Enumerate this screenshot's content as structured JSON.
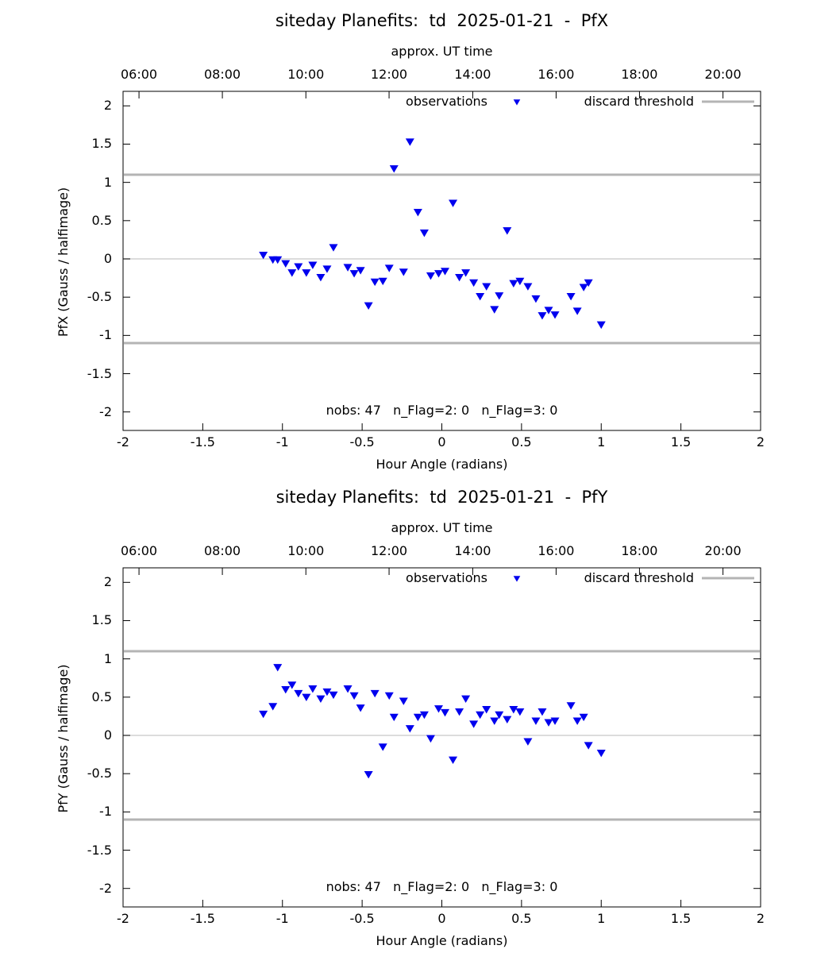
{
  "colors": {
    "marker_blue": "#0000ee",
    "threshold_gray": "#b4b4b4",
    "zero_line_gray": "#c8c8c8",
    "axis_black": "#000000"
  },
  "chart_data": [
    {
      "type": "scatter",
      "title": "siteday Planefits:  td  2025-01-21  -  PfX",
      "x2label": "approx. UT time",
      "x2ticks": [
        "06:00",
        "08:00",
        "10:00",
        "12:00",
        "14:00",
        "16:00",
        "18:00",
        "20:00"
      ],
      "x2tick_positions_rad": [
        -1.9,
        -1.377,
        -0.853,
        -0.331,
        0.194,
        0.717,
        1.24,
        1.764
      ],
      "xlabel": "Hour Angle (radians)",
      "xticks": [
        "-2",
        "-1.5",
        "-1",
        "-0.5",
        "0",
        "0.5",
        "1",
        "1.5",
        "2"
      ],
      "xlim": [
        -2,
        2
      ],
      "ylabel": "PfX (Gauss / halfimage)",
      "yticks": [
        "2",
        "1.5",
        "1",
        "0.5",
        "0",
        "-0.5",
        "-1",
        "-1.5",
        "-2"
      ],
      "ylim": [
        -2.2,
        2.2
      ],
      "grid": "zero-line only",
      "legend_position": "top-right inside",
      "legend": [
        {
          "label": "observations",
          "marker": "triangle-down",
          "color": "#0000ee"
        },
        {
          "label": "discard threshold",
          "marker": "line",
          "color": "#b4b4b4"
        }
      ],
      "discard_threshold": [
        1.1,
        -1.1
      ],
      "annotation": "nobs: 47   n_Flag=2: 0   n_Flag=3: 0",
      "nobs": 47,
      "n_flag2": 0,
      "n_flag3": 0,
      "points": [
        [
          -1.12,
          0.05
        ],
        [
          -1.06,
          -0.01
        ],
        [
          -1.03,
          -0.01
        ],
        [
          -0.98,
          -0.06
        ],
        [
          -0.94,
          -0.18
        ],
        [
          -0.9,
          -0.1
        ],
        [
          -0.85,
          -0.18
        ],
        [
          -0.81,
          -0.08
        ],
        [
          -0.76,
          -0.24
        ],
        [
          -0.72,
          -0.13
        ],
        [
          -0.68,
          0.15
        ],
        [
          -0.59,
          -0.11
        ],
        [
          -0.55,
          -0.19
        ],
        [
          -0.51,
          -0.15
        ],
        [
          -0.46,
          -0.61
        ],
        [
          -0.42,
          -0.3
        ],
        [
          -0.37,
          -0.29
        ],
        [
          -0.33,
          -0.12
        ],
        [
          -0.3,
          1.18
        ],
        [
          -0.24,
          -0.17
        ],
        [
          -0.2,
          1.53
        ],
        [
          -0.15,
          0.61
        ],
        [
          -0.11,
          0.34
        ],
        [
          -0.07,
          -0.22
        ],
        [
          -0.02,
          -0.19
        ],
        [
          0.02,
          -0.16
        ],
        [
          0.07,
          0.73
        ],
        [
          0.11,
          -0.24
        ],
        [
          0.15,
          -0.18
        ],
        [
          0.2,
          -0.31
        ],
        [
          0.24,
          -0.49
        ],
        [
          0.28,
          -0.36
        ],
        [
          0.33,
          -0.66
        ],
        [
          0.36,
          -0.48
        ],
        [
          0.41,
          0.37
        ],
        [
          0.45,
          -0.32
        ],
        [
          0.49,
          -0.29
        ],
        [
          0.54,
          -0.36
        ],
        [
          0.59,
          -0.52
        ],
        [
          0.63,
          -0.74
        ],
        [
          0.67,
          -0.67
        ],
        [
          0.71,
          -0.73
        ],
        [
          0.81,
          -0.49
        ],
        [
          0.85,
          -0.68
        ],
        [
          0.89,
          -0.37
        ],
        [
          0.92,
          -0.31
        ],
        [
          1.0,
          -0.86
        ]
      ]
    },
    {
      "type": "scatter",
      "title": "siteday Planefits:  td  2025-01-21  -  PfY",
      "x2label": "approx. UT time",
      "x2ticks": [
        "06:00",
        "08:00",
        "10:00",
        "12:00",
        "14:00",
        "16:00",
        "18:00",
        "20:00"
      ],
      "x2tick_positions_rad": [
        -1.9,
        -1.377,
        -0.853,
        -0.331,
        0.194,
        0.717,
        1.24,
        1.764
      ],
      "xlabel": "Hour Angle (radians)",
      "xticks": [
        "-2",
        "-1.5",
        "-1",
        "-0.5",
        "0",
        "0.5",
        "1",
        "1.5",
        "2"
      ],
      "xlim": [
        -2,
        2
      ],
      "ylabel": "PfY (Gauss / halfimage)",
      "yticks": [
        "2",
        "1.5",
        "1",
        "0.5",
        "0",
        "-0.5",
        "-1",
        "-1.5",
        "-2"
      ],
      "ylim": [
        -2.2,
        2.2
      ],
      "grid": "zero-line only",
      "legend_position": "top-right inside",
      "legend": [
        {
          "label": "observations",
          "marker": "triangle-down",
          "color": "#0000ee"
        },
        {
          "label": "discard threshold",
          "marker": "line",
          "color": "#b4b4b4"
        }
      ],
      "discard_threshold": [
        1.1,
        -1.1
      ],
      "annotation": "nobs: 47   n_Flag=2: 0   n_Flag=3: 0",
      "nobs": 47,
      "n_flag2": 0,
      "n_flag3": 0,
      "points": [
        [
          -1.12,
          0.28
        ],
        [
          -1.06,
          0.38
        ],
        [
          -1.03,
          0.89
        ],
        [
          -0.98,
          0.6
        ],
        [
          -0.94,
          0.66
        ],
        [
          -0.9,
          0.55
        ],
        [
          -0.85,
          0.5
        ],
        [
          -0.81,
          0.61
        ],
        [
          -0.76,
          0.48
        ],
        [
          -0.72,
          0.57
        ],
        [
          -0.68,
          0.53
        ],
        [
          -0.59,
          0.61
        ],
        [
          -0.55,
          0.52
        ],
        [
          -0.51,
          0.36
        ],
        [
          -0.46,
          -0.51
        ],
        [
          -0.42,
          0.55
        ],
        [
          -0.37,
          -0.15
        ],
        [
          -0.33,
          0.52
        ],
        [
          -0.3,
          0.24
        ],
        [
          -0.24,
          0.45
        ],
        [
          -0.2,
          0.09
        ],
        [
          -0.15,
          0.24
        ],
        [
          -0.11,
          0.27
        ],
        [
          -0.07,
          -0.04
        ],
        [
          -0.02,
          0.35
        ],
        [
          0.02,
          0.3
        ],
        [
          0.07,
          -0.32
        ],
        [
          0.11,
          0.31
        ],
        [
          0.15,
          0.48
        ],
        [
          0.2,
          0.15
        ],
        [
          0.24,
          0.27
        ],
        [
          0.28,
          0.34
        ],
        [
          0.33,
          0.19
        ],
        [
          0.36,
          0.27
        ],
        [
          0.41,
          0.21
        ],
        [
          0.45,
          0.34
        ],
        [
          0.49,
          0.31
        ],
        [
          0.54,
          -0.08
        ],
        [
          0.59,
          0.19
        ],
        [
          0.63,
          0.31
        ],
        [
          0.67,
          0.17
        ],
        [
          0.71,
          0.19
        ],
        [
          0.81,
          0.39
        ],
        [
          0.85,
          0.19
        ],
        [
          0.89,
          0.24
        ],
        [
          0.92,
          -0.13
        ],
        [
          1.0,
          -0.23
        ]
      ]
    }
  ]
}
